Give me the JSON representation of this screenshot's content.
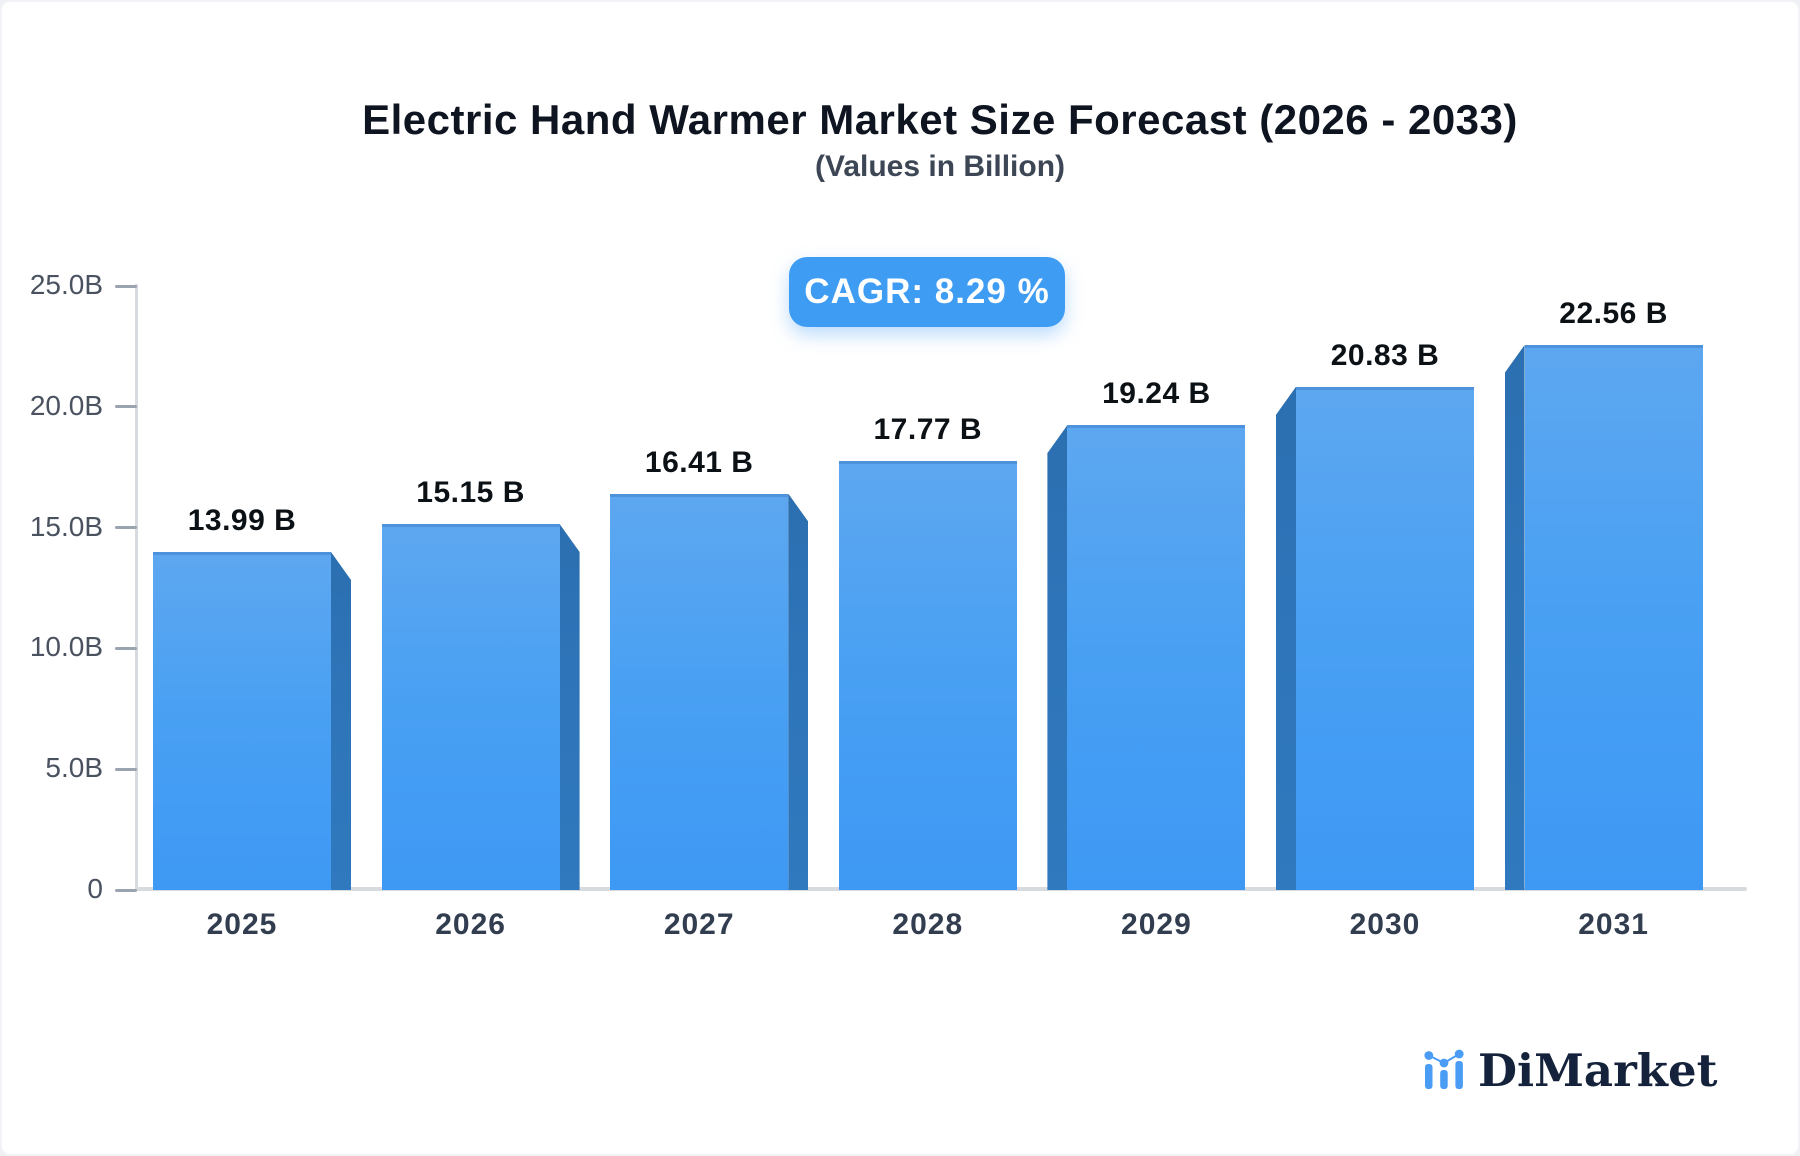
{
  "header": {
    "title": "Electric Hand Warmer Market Size Forecast (2026 - 2033)",
    "subtitle": "(Values in Billion)",
    "cagr_label": "CAGR: 8.29 %"
  },
  "footer": {
    "brand_name": "DiMarket",
    "brand_icon": "bar-chart-logo-icon"
  },
  "colors": {
    "accent_blue": "#3f9cf3",
    "bar_face_top": "#5da7f0",
    "bar_face_bottom": "#3e99f4",
    "bar_side_3d": "#2e74b8",
    "bar_top_edge": "#4d92da",
    "axis_gray": "#d7dade",
    "tick_dash_gray": "#9aa3b0",
    "y_label_color": "#4a5260",
    "x_label_color": "#323e4f",
    "title_color": "#0e1420",
    "badge_text": "#ffffff",
    "logo_navy": "#15223b",
    "logo_blue": "#4a9cf5"
  },
  "chart_data": {
    "type": "bar",
    "title": "Electric Hand Warmer Market Size Forecast (2026 - 2033)",
    "subtitle": "(Values in Billion)",
    "annotation": "CAGR: 8.29 %",
    "categories": [
      "2025",
      "2026",
      "2027",
      "2028",
      "2029",
      "2030",
      "2031"
    ],
    "values": [
      13.99,
      15.15,
      16.41,
      17.77,
      19.24,
      20.83,
      22.56
    ],
    "value_labels": [
      "13.99 B",
      "15.15 B",
      "16.41 B",
      "17.77 B",
      "19.24 B",
      "20.83 B",
      "22.56 B"
    ],
    "xlabel": "",
    "ylabel": "",
    "ylim": [
      0,
      25
    ],
    "yticks": [
      {
        "label": "25.0B",
        "value": 25
      },
      {
        "label": "20.0B",
        "value": 20
      },
      {
        "label": "15.0B",
        "value": 15
      },
      {
        "label": "10.0B",
        "value": 10
      },
      {
        "label": "5.0B",
        "value": 5
      },
      {
        "label": "0",
        "value": 0
      }
    ],
    "grid": false,
    "legend": false,
    "bar_style": "3d-perspective-from-center"
  }
}
